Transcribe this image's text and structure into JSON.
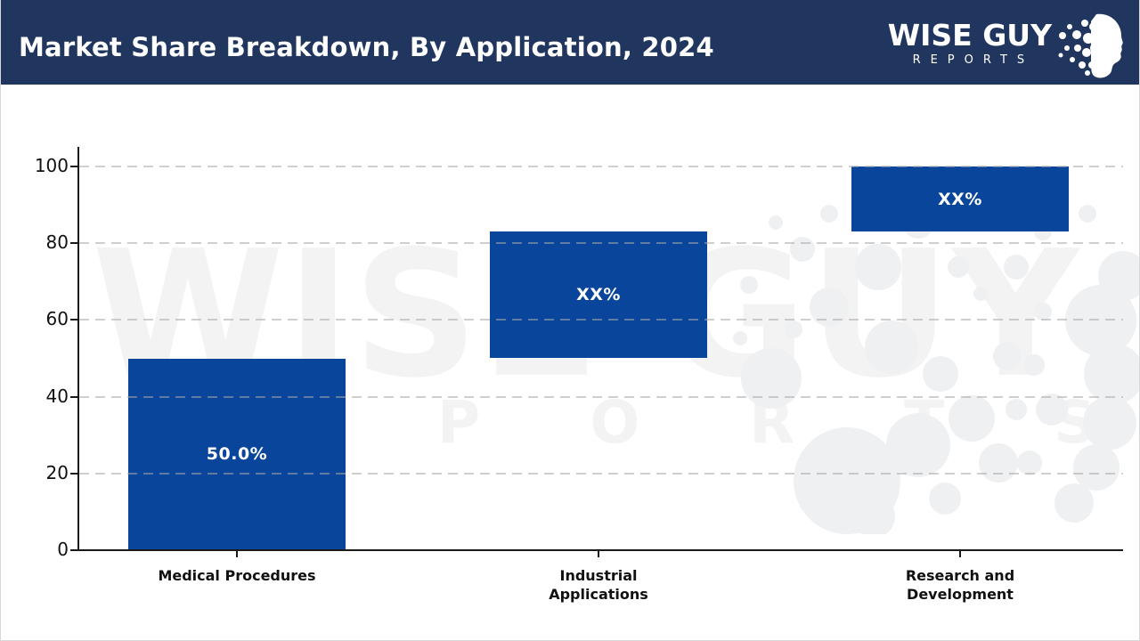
{
  "header": {
    "title": "Market Share Breakdown, By Application, 2024",
    "logo": {
      "line1": "WISE GUY",
      "line2": "REPORTS"
    }
  },
  "watermark": {
    "line1": "WISE GUY",
    "line2": "R E P O R T S"
  },
  "chart_data": {
    "type": "bar",
    "subtype": "waterfall",
    "title": "Market Share Breakdown, By Application, 2024",
    "categories": [
      "Medical Procedures",
      "Industrial Applications",
      "Research and Development"
    ],
    "bars": [
      {
        "category": "Medical Procedures",
        "start": 0,
        "end": 50,
        "label": "50.0%"
      },
      {
        "category": "Industrial Applications",
        "start": 50,
        "end": 83,
        "label": "XX%"
      },
      {
        "category": "Research and Development",
        "start": 83,
        "end": 100,
        "label": "XX%"
      }
    ],
    "ylim": [
      0,
      100
    ],
    "yticks": [
      0,
      20,
      40,
      60,
      80,
      100
    ],
    "xlabel": "",
    "ylabel": "",
    "grid": "horizontal-dashed",
    "legend": "none",
    "bar_color": "#0a459c",
    "value_label_color": "#ffffff"
  }
}
